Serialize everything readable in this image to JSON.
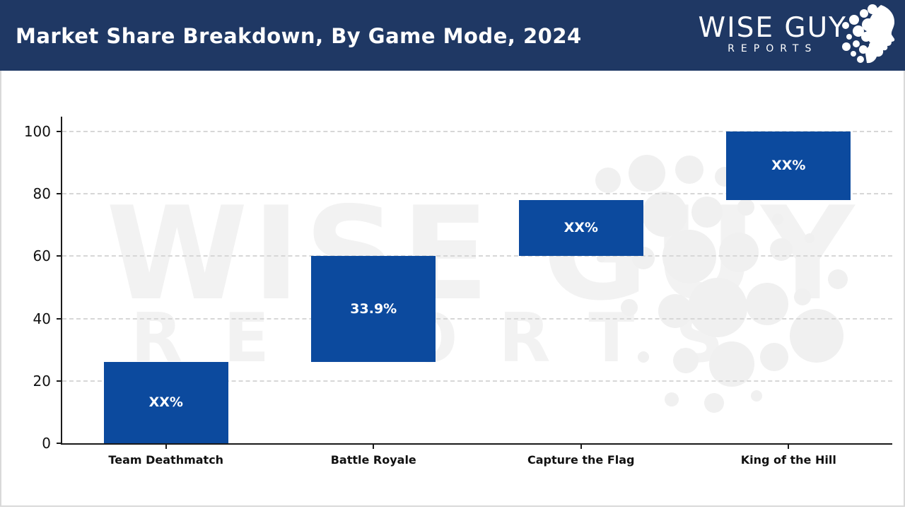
{
  "header": {
    "title": "Market Share Breakdown, By Game Mode, 2024",
    "logo": {
      "line1": "WISE GUY",
      "line2": "REPORTS"
    }
  },
  "watermark": {
    "line1": "WISE GUY",
    "line2": "REPORTS"
  },
  "chart_data": {
    "type": "bar",
    "subtype": "waterfall",
    "title": "Market Share Breakdown, By Game Mode, 2024",
    "categories": [
      "Team Deathmatch",
      "Battle Royale",
      "Capture the Flag",
      "King of the Hill"
    ],
    "series": [
      {
        "name": "Market Share %",
        "segments": [
          {
            "category": "Team Deathmatch",
            "start": 0,
            "end": 26.1,
            "value": 26.1,
            "label": "XX%"
          },
          {
            "category": "Battle Royale",
            "start": 26.1,
            "end": 60.0,
            "value": 33.9,
            "label": "33.9%"
          },
          {
            "category": "Capture the Flag",
            "start": 60.0,
            "end": 78.1,
            "value": 18.1,
            "label": "XX%"
          },
          {
            "category": "King of the Hill",
            "start": 78.1,
            "end": 100,
            "value": 21.9,
            "label": "XX%"
          }
        ]
      }
    ],
    "xlabel": "",
    "ylabel": "",
    "ylim": [
      0,
      100
    ],
    "yticks": [
      0,
      20,
      40,
      60,
      80,
      100
    ],
    "grid": "horizontal-dashed",
    "legend": "none",
    "bar_color": "#0C4A9E",
    "bar_label_color": "#ffffff"
  },
  "colors": {
    "header_bg": "#1F3864",
    "bar": "#0C4A9E",
    "axis": "#1a1a1a",
    "gridline": "#d7d7d7",
    "watermark": "#f2f2f2",
    "frame_border": "#d9d9d9"
  }
}
